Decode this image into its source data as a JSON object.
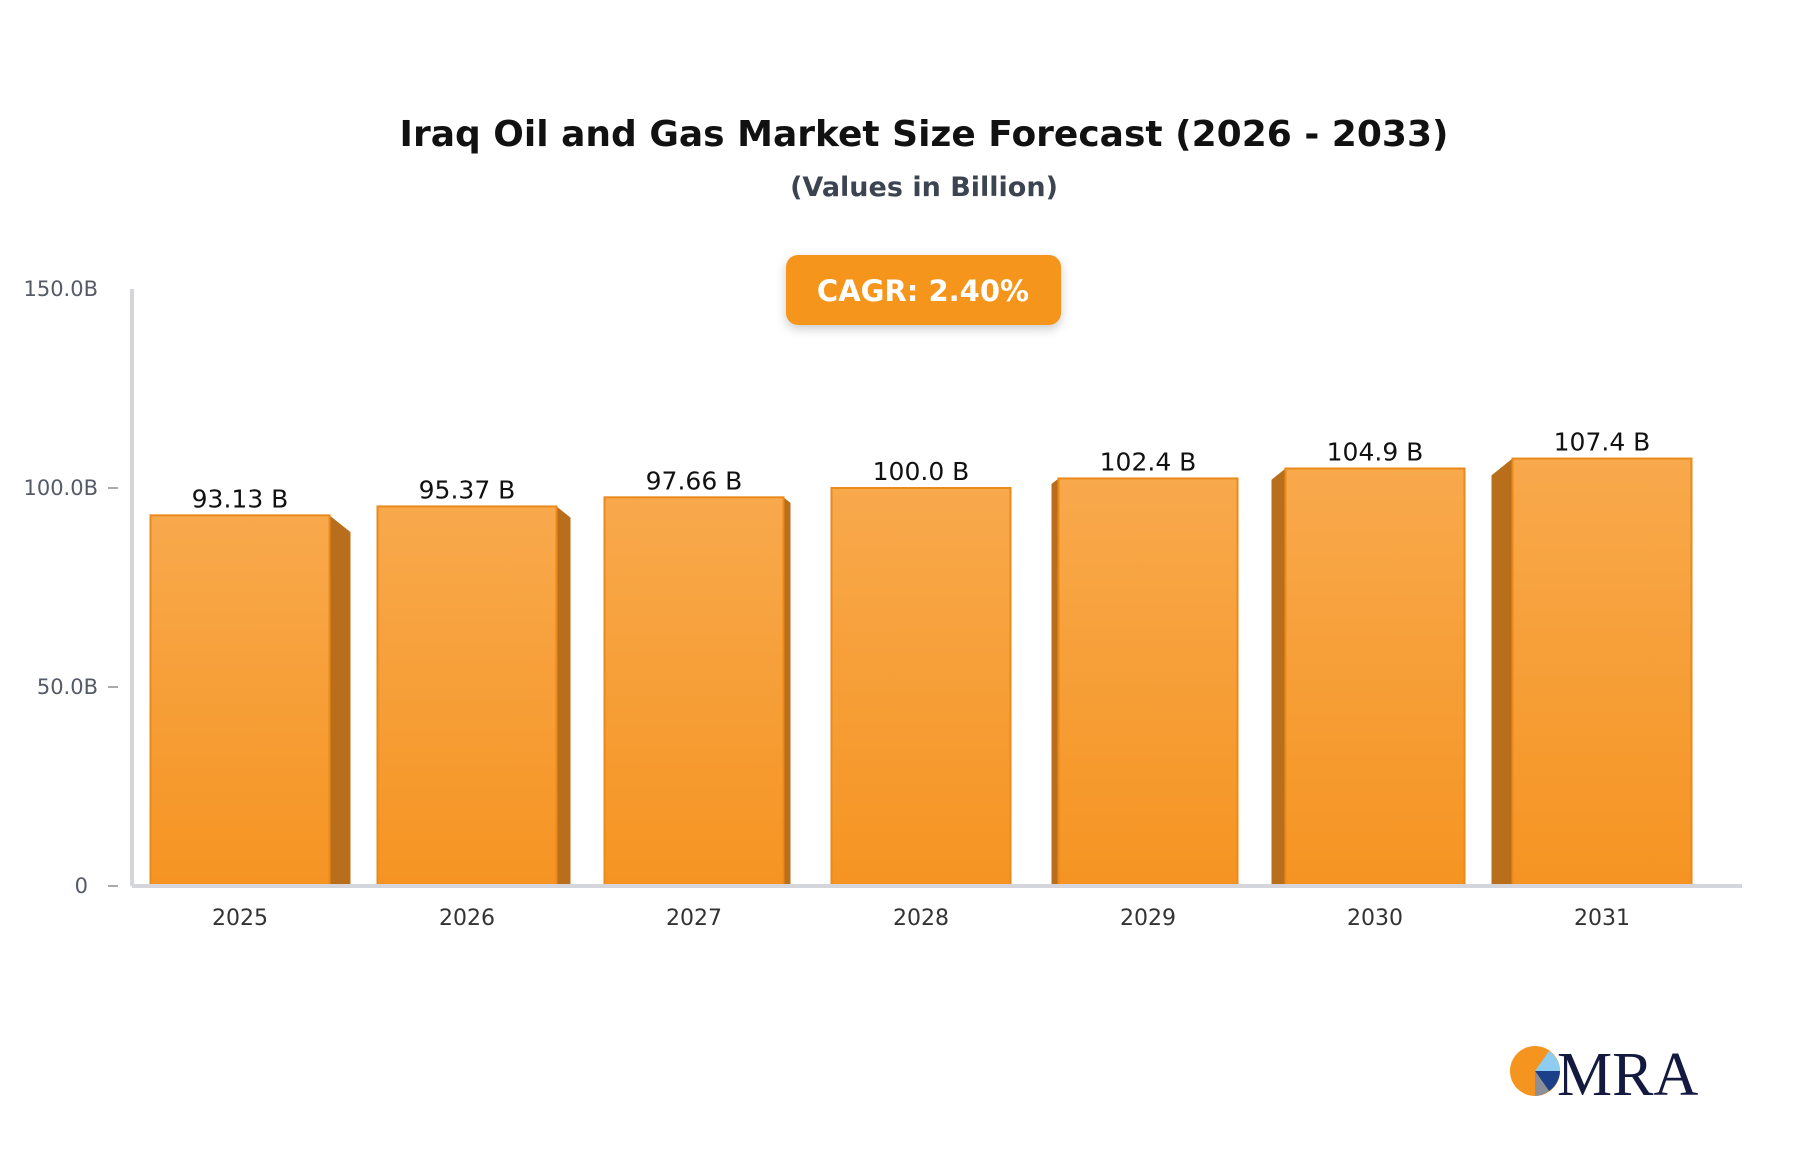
{
  "chart_data": {
    "type": "bar",
    "title": "Iraq Oil and Gas Market Size Forecast (2026 - 2033)",
    "subtitle": "(Values in Billion)",
    "annotation": "CAGR: 2.40%",
    "categories": [
      "2025",
      "2026",
      "2027",
      "2028",
      "2029",
      "2030",
      "2031"
    ],
    "values": [
      93.13,
      95.37,
      97.66,
      100.0,
      102.4,
      104.9,
      107.4
    ],
    "data_labels": [
      "93.13 B",
      "95.37 B",
      "97.66 B",
      "100.0 B",
      "102.4 B",
      "104.9 B",
      "107.4 B"
    ],
    "yticks": [
      0,
      50,
      100,
      150
    ],
    "ytick_labels": [
      "0",
      "50.0B",
      "100.0B",
      "150.0B"
    ],
    "ylim": [
      0,
      150
    ],
    "xlabel": "",
    "ylabel": "",
    "grid": false,
    "colors": {
      "bar_top": "#f8a94c",
      "bar_bottom": "#f59422",
      "bar_side": "#b86e1a",
      "badge": "#f5951f",
      "axis": "#d4d6dc"
    }
  },
  "logo": {
    "text": "MRA"
  }
}
